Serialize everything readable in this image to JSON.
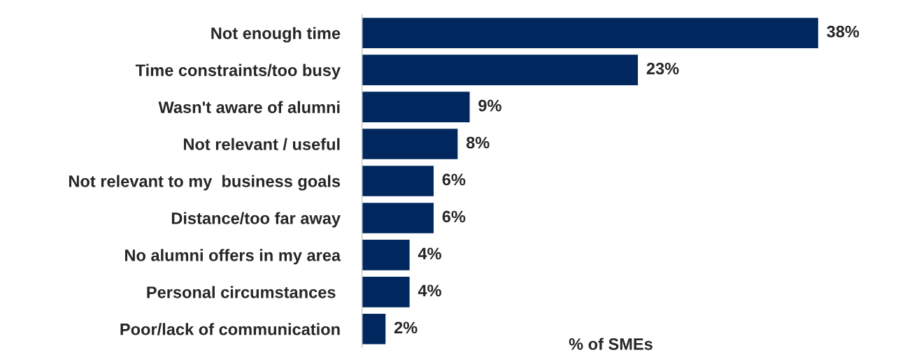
{
  "chart_data": {
    "type": "bar",
    "orientation": "horizontal",
    "xlabel": "% of SMEs",
    "categories": [
      "Not enough time",
      "Time constraints/too busy",
      "Wasn't aware of alumni",
      "Not relevant / useful",
      "Not relevant to my  business goals",
      "Distance/too far away",
      "No alumni offers in my area",
      "Personal circumstances ",
      "Poor/lack of communication"
    ],
    "values": [
      38,
      23,
      9,
      8,
      6,
      6,
      4,
      4,
      2
    ],
    "value_labels": [
      "38%",
      "23%",
      "9%",
      "8%",
      "6%",
      "6%",
      "4%",
      "4%",
      "2%"
    ],
    "color": "#00285e",
    "grid": false,
    "legend": false
  }
}
